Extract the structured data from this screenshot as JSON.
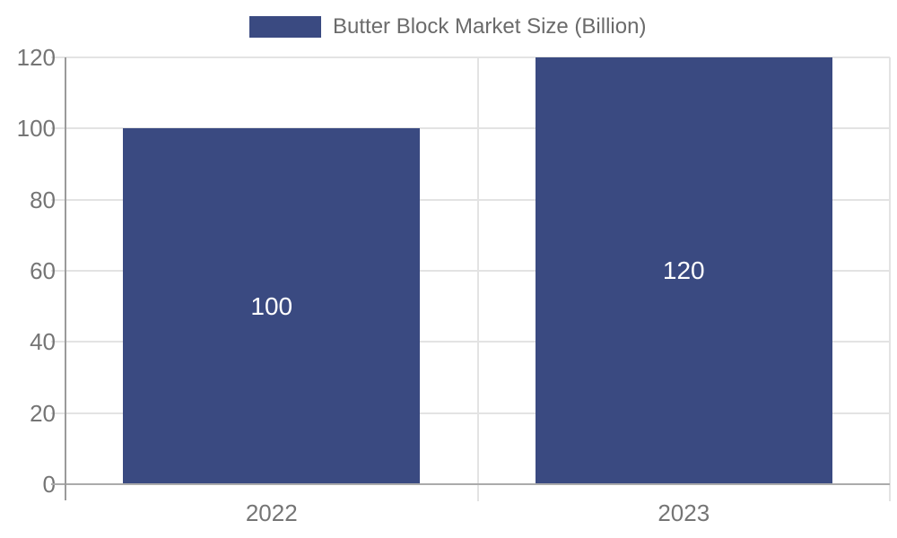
{
  "legend": {
    "label": "Butter Block Market Size (Billion)"
  },
  "chart_data": {
    "type": "bar",
    "title": "Butter Block Market Size (Billion)",
    "categories": [
      "2022",
      "2023"
    ],
    "series": [
      {
        "name": "Butter Block Market Size (Billion)",
        "values": [
          100,
          120
        ]
      }
    ],
    "value_labels": [
      "100",
      "120"
    ],
    "xlabel": "",
    "ylabel": "",
    "y_ticks": [
      0,
      20,
      40,
      60,
      80,
      100,
      120
    ],
    "ylim": [
      0,
      120
    ],
    "grid": true,
    "legend_position": "top-center",
    "colors": {
      "bar": "#3A4A81",
      "value_label": "#FFFFFF",
      "gridline": "#E3E3E3",
      "axis_line": "#9A9A9A",
      "baseline": "#ABABAB",
      "tick_label": "#757575",
      "legend_text": "#6B6B6B",
      "background": "#FFFFFF"
    }
  }
}
